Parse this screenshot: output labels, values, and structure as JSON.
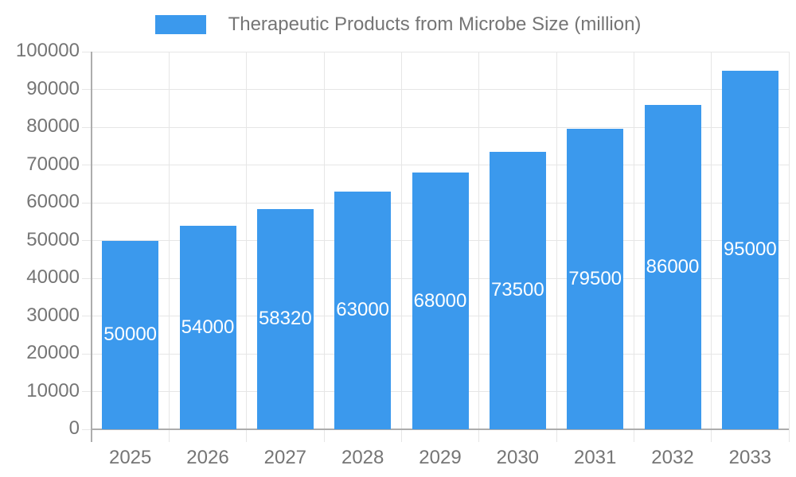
{
  "legend": {
    "label": "Therapeutic Products from Microbe Size (million)"
  },
  "chart_data": {
    "type": "bar",
    "title": "Therapeutic Products from Microbe Size (million)",
    "categories": [
      "2025",
      "2026",
      "2027",
      "2028",
      "2029",
      "2030",
      "2031",
      "2032",
      "2033"
    ],
    "values": [
      50000,
      54000,
      58320,
      63000,
      68000,
      73500,
      79500,
      86000,
      95000
    ],
    "data_labels": [
      "50000",
      "54000",
      "58320",
      "63000",
      "68000",
      "73500",
      "79500",
      "86000",
      "95000"
    ],
    "xlabel": "",
    "ylabel": "",
    "ylim": [
      0,
      100000
    ],
    "ytick_interval": 10000,
    "ytick_labels": [
      "0",
      "10000",
      "20000",
      "30000",
      "40000",
      "50000",
      "60000",
      "70000",
      "80000",
      "90000",
      "100000"
    ],
    "grid": true,
    "legend_position": "top"
  },
  "colors": {
    "bar": "#3B99ED",
    "grid": "#E6E6E6",
    "axis": "#ADADAD",
    "text": "#757575",
    "bar_label": "#FFFFFF",
    "background": "#FFFFFF"
  }
}
